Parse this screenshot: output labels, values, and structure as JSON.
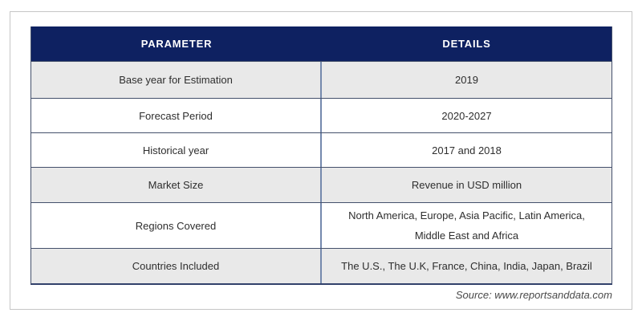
{
  "chart_data": {
    "type": "table",
    "title": "Report scope parameters table",
    "columns": [
      "PARAMETER",
      "DETAILS"
    ],
    "rows": [
      [
        "Base year for Estimation",
        "2019"
      ],
      [
        "Forecast Period",
        "2020-2027"
      ],
      [
        "Historical year",
        "2017 and 2018"
      ],
      [
        "Market Size",
        "Revenue in USD million"
      ],
      [
        "Regions Covered",
        "North America, Europe, Asia Pacific, Latin America, Middle East and Africa"
      ],
      [
        "Countries Included",
        "The U.S., The U.K, France, China, India, Japan, Brazil"
      ]
    ],
    "shaded_row_indices": [
      0,
      3,
      5
    ],
    "layout": "two-column parameter/details table, header dark navy, alternating light-gray shading"
  },
  "source": {
    "text": "Source: www.reportsanddata.com"
  },
  "colors": {
    "header_bg": "#0e2161",
    "header_text": "#ffffff",
    "shaded_row_bg": "#e9e9e9",
    "row_border": "#44506b",
    "column_divider": "#7589ad",
    "table_bottom_border": "#32416b",
    "frame_border": "#c6c6c6",
    "cell_text": "#2e2e2e",
    "source_text": "#4a4a4a"
  }
}
